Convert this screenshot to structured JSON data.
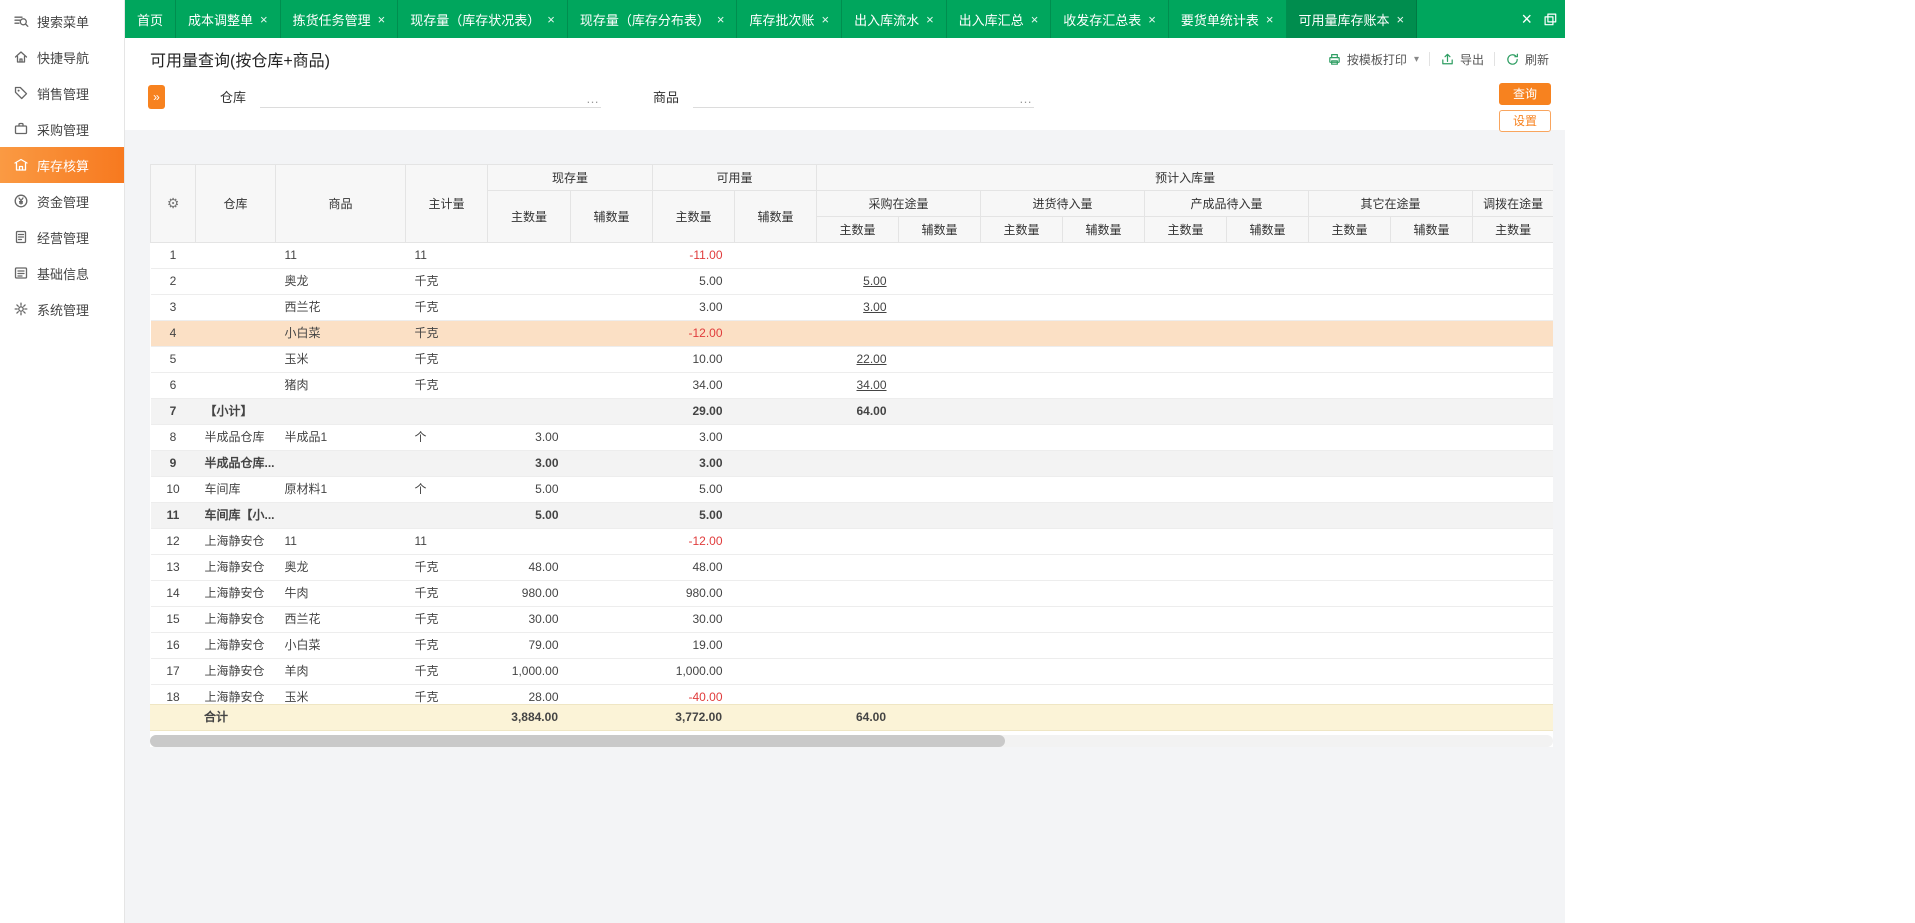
{
  "window": {
    "close_icon": "×"
  },
  "tabs": [
    {
      "label": "首页",
      "closable": false
    },
    {
      "label": "成本调整单",
      "closable": true
    },
    {
      "label": "拣货任务管理",
      "closable": true
    },
    {
      "label": "现存量（库存状况表）",
      "closable": true
    },
    {
      "label": "现存量（库存分布表）",
      "closable": true
    },
    {
      "label": "库存批次账",
      "closable": true
    },
    {
      "label": "出入库流水",
      "closable": true
    },
    {
      "label": "出入库汇总",
      "closable": true
    },
    {
      "label": "收发存汇总表",
      "closable": true
    },
    {
      "label": "要货单统计表",
      "closable": true
    },
    {
      "label": "可用量库存账本",
      "closable": true,
      "active": true
    }
  ],
  "sidebar": [
    {
      "label": "搜索菜单",
      "icon": "search"
    },
    {
      "label": "快捷导航",
      "icon": "home"
    },
    {
      "label": "销售管理",
      "icon": "sales"
    },
    {
      "label": "采购管理",
      "icon": "purchase"
    },
    {
      "label": "库存核算",
      "icon": "inventory",
      "active": true
    },
    {
      "label": "资金管理",
      "icon": "funds"
    },
    {
      "label": "经营管理",
      "icon": "business"
    },
    {
      "label": "基础信息",
      "icon": "baseinfo"
    },
    {
      "label": "系统管理",
      "icon": "system"
    }
  ],
  "page": {
    "title": "可用量查询(按仓库+商品)",
    "print_label": "按模板打印",
    "print_caret": "▾",
    "export_label": "导出",
    "refresh_label": "刷新"
  },
  "filters": {
    "warehouse_label": "仓库",
    "warehouse_value": "",
    "product_label": "商品",
    "product_value": "",
    "ellipsis": "…",
    "expander": "»",
    "query_button": "查询",
    "settings_button": "设置"
  },
  "table": {
    "gear_icon": "⚙",
    "header": {
      "warehouse": "仓库",
      "product": "商品",
      "unit": "主计量",
      "current": "现存量",
      "available": "可用量",
      "expected": "预计入库量",
      "main_qty": "主数量",
      "aux_qty": "辅数量",
      "expected_groups": [
        "采购在途量",
        "进货待入量",
        "产成品待入量",
        "其它在途量",
        "调拨在途量"
      ]
    },
    "rows": [
      {
        "n": "1",
        "wh": "",
        "prod": "11",
        "unit": "11",
        "cur": "",
        "av": "-11.00",
        "pur": ""
      },
      {
        "n": "2",
        "wh": "",
        "prod": "奥龙",
        "unit": "千克",
        "cur": "",
        "av": "5.00",
        "pur": "5.00",
        "pur_link": true
      },
      {
        "n": "3",
        "wh": "",
        "prod": "西兰花",
        "unit": "千克",
        "cur": "",
        "av": "3.00",
        "pur": "3.00",
        "pur_link": true
      },
      {
        "n": "4",
        "wh": "",
        "prod": "小白菜",
        "unit": "千克",
        "cur": "",
        "av": "-12.00",
        "pur": "",
        "style": "highlight"
      },
      {
        "n": "5",
        "wh": "",
        "prod": "玉米",
        "unit": "千克",
        "cur": "",
        "av": "10.00",
        "pur": "22.00",
        "pur_link": true
      },
      {
        "n": "6",
        "wh": "",
        "prod": "猪肉",
        "unit": "千克",
        "cur": "",
        "av": "34.00",
        "pur": "34.00",
        "pur_link": true
      },
      {
        "n": "7",
        "wh": "【小计】",
        "prod": "",
        "unit": "",
        "cur": "",
        "av": "29.00",
        "pur": "64.00",
        "style": "subtotal"
      },
      {
        "n": "8",
        "wh": "半成品仓库",
        "prod": "半成品1",
        "unit": "个",
        "cur": "3.00",
        "av": "3.00",
        "pur": ""
      },
      {
        "n": "9",
        "wh": "半成品仓库...",
        "prod": "",
        "unit": "",
        "cur": "3.00",
        "av": "3.00",
        "pur": "",
        "style": "subtotal"
      },
      {
        "n": "10",
        "wh": "车间库",
        "prod": "原材料1",
        "unit": "个",
        "cur": "5.00",
        "av": "5.00",
        "pur": ""
      },
      {
        "n": "11",
        "wh": "车间库【小...",
        "prod": "",
        "unit": "",
        "cur": "5.00",
        "av": "5.00",
        "pur": "",
        "style": "subtotal"
      },
      {
        "n": "12",
        "wh": "上海静安仓",
        "prod": "11",
        "unit": "11",
        "cur": "",
        "av": "-12.00",
        "pur": ""
      },
      {
        "n": "13",
        "wh": "上海静安仓",
        "prod": "奥龙",
        "unit": "千克",
        "cur": "48.00",
        "av": "48.00",
        "pur": ""
      },
      {
        "n": "14",
        "wh": "上海静安仓",
        "prod": "牛肉",
        "unit": "千克",
        "cur": "980.00",
        "av": "980.00",
        "pur": ""
      },
      {
        "n": "15",
        "wh": "上海静安仓",
        "prod": "西兰花",
        "unit": "千克",
        "cur": "30.00",
        "av": "30.00",
        "pur": ""
      },
      {
        "n": "16",
        "wh": "上海静安仓",
        "prod": "小白菜",
        "unit": "千克",
        "cur": "79.00",
        "av": "19.00",
        "pur": ""
      },
      {
        "n": "17",
        "wh": "上海静安仓",
        "prod": "羊肉",
        "unit": "千克",
        "cur": "1,000.00",
        "av": "1,000.00",
        "pur": ""
      },
      {
        "n": "18",
        "wh": "上海静安仓",
        "prod": "玉米",
        "unit": "千克",
        "cur": "28.00",
        "av": "-40.00",
        "pur": ""
      }
    ],
    "footer": {
      "label": "合计",
      "current_main": "3,884.00",
      "available_main": "3,772.00",
      "purchase_main": "64.00"
    }
  },
  "colors": {
    "brand_green": "#00a65d",
    "active_tab_green": "#008d4e",
    "accent_orange": "#f7821f",
    "negative_red": "#e03c3c",
    "highlight_row": "#fbe0c5",
    "total_row": "#fbf3d7"
  }
}
